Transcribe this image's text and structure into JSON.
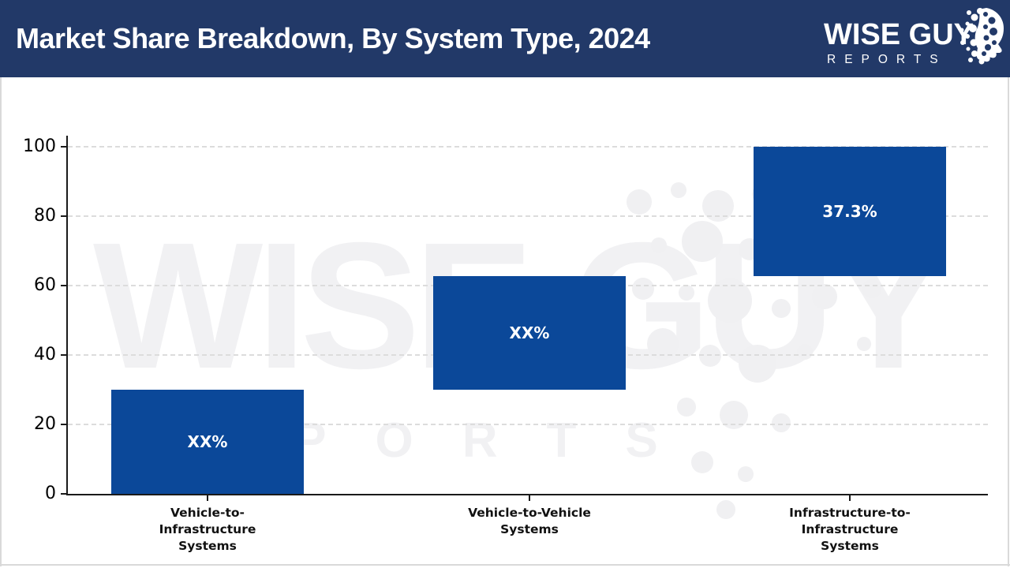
{
  "header": {
    "title": "Market Share Breakdown, By System Type, 2024",
    "bg_color": "#223968",
    "logo": {
      "wordmark": "WISE GUY",
      "sub": "REPORTS"
    }
  },
  "watermark": {
    "wordmark": "WISE GUY",
    "sub": "REPORTS"
  },
  "chart_data": {
    "type": "bar",
    "variant": "floating-waterfall",
    "title": "Market Share Breakdown, By System Type, 2024",
    "xlabel": "",
    "ylabel": "",
    "categories": [
      [
        "Vehicle-to-",
        "Infrastructure",
        "Systems"
      ],
      [
        "Vehicle-to-Vehicle",
        "Systems"
      ],
      [
        "Infrastructure-to-",
        "Infrastructure",
        "Systems"
      ]
    ],
    "series": [
      {
        "name": "Market share (%)",
        "segments": [
          {
            "from": 0,
            "to": 30.0,
            "label": "XX%"
          },
          {
            "from": 30.0,
            "to": 62.7,
            "label": "XX%"
          },
          {
            "from": 62.7,
            "to": 100.0,
            "label": "37.3%"
          }
        ]
      }
    ],
    "ylim": [
      0,
      100
    ],
    "yticks": [
      0,
      20,
      40,
      60,
      80,
      100
    ],
    "grid": "horizontal-dashed",
    "legend": "none",
    "colors": {
      "bar": "#0b4899",
      "grid": "#dcdcdc",
      "axis": "#1a1a1a",
      "tick_label": "#000000",
      "category_label": "#111111",
      "bar_label": "#ffffff"
    }
  }
}
